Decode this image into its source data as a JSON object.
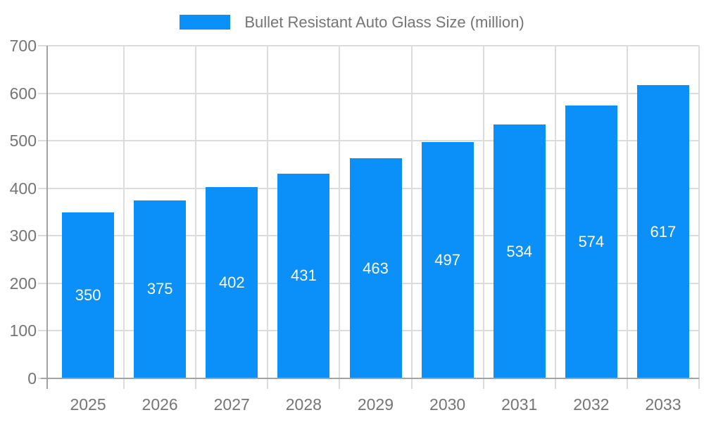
{
  "chart_data": {
    "type": "bar",
    "title": "Bullet Resistant Auto Glass Size (million)",
    "series": [
      {
        "name": "Bullet Resistant Auto Glass Size (million)",
        "values": [
          350,
          375,
          402,
          431,
          463,
          497,
          534,
          574,
          617
        ]
      }
    ],
    "categories": [
      "2025",
      "2026",
      "2027",
      "2028",
      "2029",
      "2030",
      "2031",
      "2032",
      "2033"
    ],
    "xlabel": "",
    "ylabel": "",
    "ylim": [
      0,
      700
    ],
    "yticks": [
      0,
      100,
      200,
      300,
      400,
      500,
      600,
      700
    ],
    "grid": true,
    "legend_position": "top-center",
    "bar_label_position": "inside-center",
    "colors": {
      "bar": "#0a90f8",
      "bar_label": "#ffffff",
      "axis_line": "#a3a3a3",
      "gridline": "#dcdcdc",
      "tick_label": "#757575",
      "legend_text": "#757575",
      "background": "#ffffff"
    }
  }
}
